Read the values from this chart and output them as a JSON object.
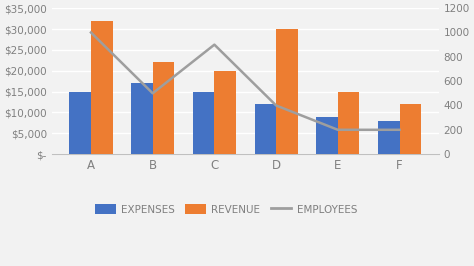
{
  "categories": [
    "A",
    "B",
    "C",
    "D",
    "E",
    "F"
  ],
  "expenses": [
    15000,
    17000,
    15000,
    12000,
    9000,
    8000
  ],
  "revenue": [
    32000,
    22000,
    20000,
    30000,
    15000,
    12000
  ],
  "employees": [
    1000,
    500,
    900,
    400,
    200,
    200
  ],
  "bar_color_expenses": "#4472c4",
  "bar_color_revenue": "#ed7d31",
  "line_color_employees": "#9e9e9e",
  "left_ylim": [
    0,
    35000
  ],
  "right_ylim": [
    0,
    1200
  ],
  "left_yticks": [
    0,
    5000,
    10000,
    15000,
    20000,
    25000,
    30000,
    35000
  ],
  "right_yticks": [
    0,
    200,
    400,
    600,
    800,
    1000,
    1200
  ],
  "background_color": "#f2f2f2",
  "plot_bg_color": "#f2f2f2",
  "legend_labels": [
    "EXPENSES",
    "REVENUE",
    "EMPLOYEES"
  ],
  "bar_width": 0.35,
  "tick_label_color": "#808080",
  "grid_color": "#ffffff",
  "spine_color": "#c0c0c0"
}
